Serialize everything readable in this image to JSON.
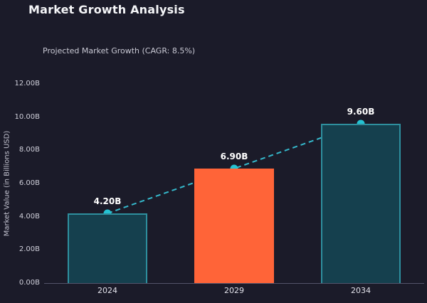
{
  "header": {
    "title": "Market Growth Analysis",
    "subtitle": "Projected Market Growth (CAGR: 8.5%)"
  },
  "chart_data": {
    "type": "bar",
    "title": "Market Growth Analysis",
    "subtitle": "Projected Market Growth (CAGR: 8.5%)",
    "categories": [
      "2024",
      "2029",
      "2034"
    ],
    "values": [
      4.2,
      6.9,
      9.6
    ],
    "value_labels": [
      "4.20B",
      "6.90B",
      "9.60B"
    ],
    "xlabel": "",
    "ylabel": "Market Value (in Billions USD)",
    "ylim": [
      0,
      12
    ],
    "ytick_values": [
      0,
      2,
      4,
      6,
      8,
      10,
      12
    ],
    "ytick_labels": [
      "0.00B",
      "2.00B",
      "4.00B",
      "6.00B",
      "8.00B",
      "10.00B",
      "12.00B"
    ],
    "grid": false,
    "legend_position": "none",
    "overlay": "dashed trend line with circular markers across bar tops",
    "bar_fill_colors": [
      "#15404e",
      "#ff6438",
      "#15404e"
    ],
    "bar_border_colors": [
      "#2e8f9e",
      "#ff6438",
      "#2e8f9e"
    ],
    "trend_line_color": "#35b9cc",
    "marker_color": "#25c3d3"
  },
  "colors": {
    "background": "#1b1b29",
    "title_text": "#f5f6f8",
    "muted_text": "#c9c9d4",
    "axis_line": "#53536a"
  }
}
